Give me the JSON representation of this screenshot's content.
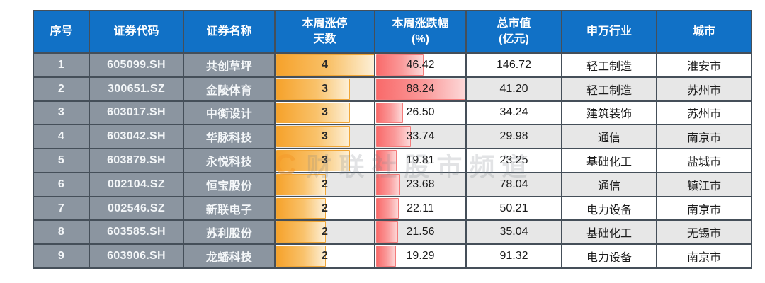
{
  "watermark": {
    "logo_text": "C",
    "text": "财联社股市频道"
  },
  "colors": {
    "header_bg": "#1171c6",
    "label_cell_bg": "#8b95a0",
    "grid_line": "#454f59",
    "alt_row_bg": "#e7e7e7",
    "bar_orange": "#f6a22b",
    "bar_red": "#f96a6a"
  },
  "chart_data": {
    "type": "table",
    "columns": [
      {
        "key": "index",
        "label": "序号"
      },
      {
        "key": "code",
        "label": "证券代码"
      },
      {
        "key": "name",
        "label": "证券名称"
      },
      {
        "key": "limit_up_days",
        "label": "本周涨停\n天数"
      },
      {
        "key": "weekly_change_pct",
        "label": "本周涨跌幅\n(%)"
      },
      {
        "key": "market_cap",
        "label": "总市值\n(亿元)"
      },
      {
        "key": "industry",
        "label": "申万行业"
      },
      {
        "key": "city",
        "label": "城市"
      }
    ],
    "bar_scales": {
      "limit_up_days_max": 4,
      "weekly_change_pct_max": 88.24
    },
    "rows": [
      {
        "index": 1,
        "code": "605099.SH",
        "name": "共创草坪",
        "limit_up_days": 4,
        "weekly_change_pct": 46.42,
        "market_cap": 146.72,
        "industry": "轻工制造",
        "city": "淮安市"
      },
      {
        "index": 2,
        "code": "300651.SZ",
        "name": "金陵体育",
        "limit_up_days": 3,
        "weekly_change_pct": 88.24,
        "market_cap": 41.2,
        "industry": "轻工制造",
        "city": "苏州市"
      },
      {
        "index": 3,
        "code": "603017.SH",
        "name": "中衡设计",
        "limit_up_days": 3,
        "weekly_change_pct": 26.5,
        "market_cap": 34.24,
        "industry": "建筑装饰",
        "city": "苏州市"
      },
      {
        "index": 4,
        "code": "603042.SH",
        "name": "华脉科技",
        "limit_up_days": 3,
        "weekly_change_pct": 33.74,
        "market_cap": 29.98,
        "industry": "通信",
        "city": "南京市"
      },
      {
        "index": 5,
        "code": "603879.SH",
        "name": "永悦科技",
        "limit_up_days": 3,
        "weekly_change_pct": 19.81,
        "market_cap": 23.25,
        "industry": "基础化工",
        "city": "盐城市"
      },
      {
        "index": 6,
        "code": "002104.SZ",
        "name": "恒宝股份",
        "limit_up_days": 2,
        "weekly_change_pct": 23.68,
        "market_cap": 78.04,
        "industry": "通信",
        "city": "镇江市"
      },
      {
        "index": 7,
        "code": "002546.SZ",
        "name": "新联电子",
        "limit_up_days": 2,
        "weekly_change_pct": 22.11,
        "market_cap": 50.21,
        "industry": "电力设备",
        "city": "南京市"
      },
      {
        "index": 8,
        "code": "603585.SH",
        "name": "苏利股份",
        "limit_up_days": 2,
        "weekly_change_pct": 21.56,
        "market_cap": 35.04,
        "industry": "基础化工",
        "city": "无锡市"
      },
      {
        "index": 9,
        "code": "603906.SH",
        "name": "龙蟠科技",
        "limit_up_days": 2,
        "weekly_change_pct": 19.29,
        "market_cap": 91.32,
        "industry": "电力设备",
        "city": "南京市"
      }
    ]
  }
}
